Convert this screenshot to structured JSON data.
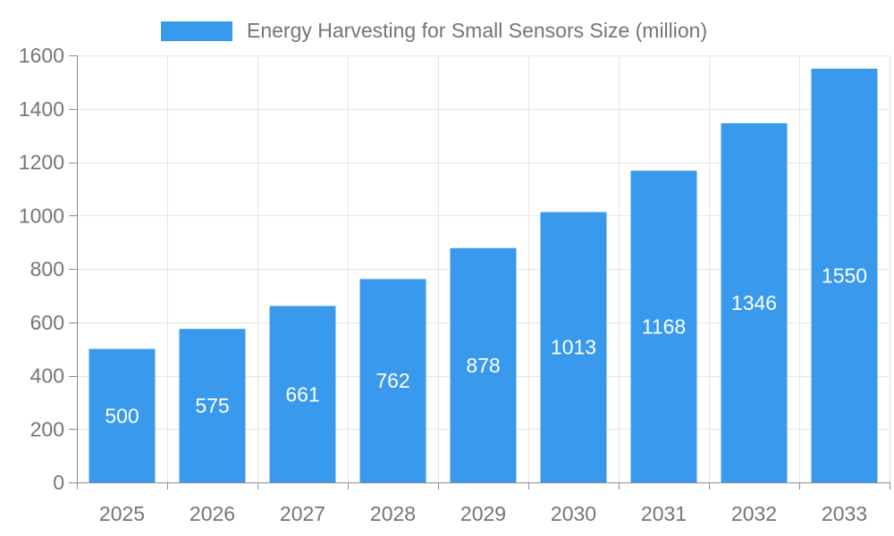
{
  "chart_data": {
    "type": "bar",
    "title": "Energy Harvesting for Small Sensors Size (million)",
    "legend": [
      "Energy Harvesting for Small Sensors Size (million)"
    ],
    "legend_position": "top",
    "categories": [
      "2025",
      "2026",
      "2027",
      "2028",
      "2029",
      "2030",
      "2031",
      "2032",
      "2033"
    ],
    "values": [
      500,
      575,
      661,
      762,
      878,
      1013,
      1168,
      1346,
      1550
    ],
    "xlabel": "",
    "ylabel": "",
    "ylim": [
      0,
      1600
    ],
    "ytick_interval": 200,
    "yticks": [
      0,
      200,
      400,
      600,
      800,
      1000,
      1200,
      1400,
      1600
    ],
    "grid": true,
    "value_labels_position": "inside-center",
    "colors": {
      "bar": "#3999ED",
      "grid": "#E6E6E6",
      "axis": "#8C8C8C",
      "tick_text": "#757575",
      "value_label_text": "#FFFFFF",
      "background": "#FFFFFF"
    }
  }
}
